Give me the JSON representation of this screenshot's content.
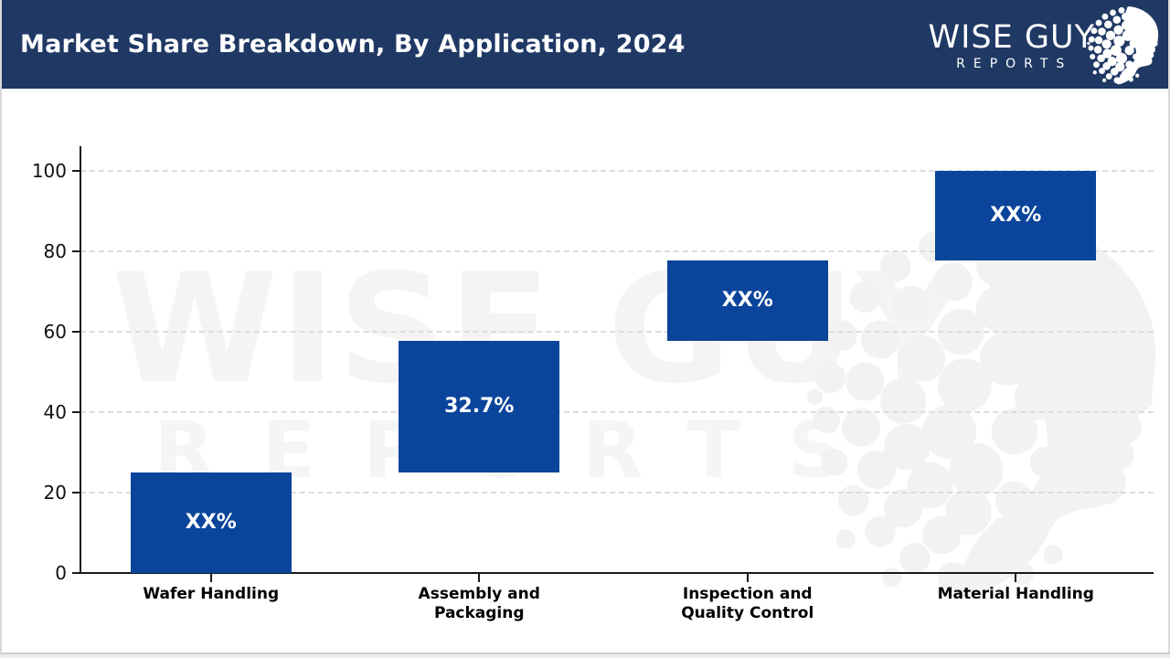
{
  "header": {
    "title": "Market Share Breakdown, By Application, 2024",
    "logo_line1": "WISE GUY",
    "logo_line2": "REPORTS",
    "bg_color": "#1f3864"
  },
  "watermark": {
    "line1": "WISE GUY",
    "line2": "REPORTS"
  },
  "colors": {
    "header_bg": "#1f3864",
    "bar": "#0a449b",
    "bar_label": "#ffffff",
    "grid": "#dcdcdc",
    "axis": "#1a1a1a",
    "watermark": "#f4f4f4"
  },
  "chart_data": {
    "type": "bar",
    "subtype": "waterfall",
    "title": "Market Share Breakdown, By Application, 2024",
    "xlabel": "",
    "ylabel": "",
    "ylim": [
      0,
      100
    ],
    "yticks": [
      0,
      20,
      40,
      60,
      80,
      100
    ],
    "grid": "horizontal-dashed",
    "legend": "none",
    "categories": [
      [
        "Wafer Handling"
      ],
      [
        "Assembly and",
        "Packaging"
      ],
      [
        "Inspection and",
        "Quality Control"
      ],
      [
        "Material Handling"
      ]
    ],
    "segments": [
      {
        "category": "Wafer Handling",
        "base": 0,
        "value": 25,
        "top": 25,
        "label": "XX%"
      },
      {
        "category": "Assembly and Packaging",
        "base": 25,
        "value": 32.7,
        "top": 57.7,
        "label": "32.7%"
      },
      {
        "category": "Inspection and Quality Control",
        "base": 57.7,
        "value": 20,
        "top": 77.7,
        "label": "XX%"
      },
      {
        "category": "Material Handling",
        "base": 77.7,
        "value": 22.3,
        "top": 100,
        "label": "XX%"
      }
    ]
  }
}
